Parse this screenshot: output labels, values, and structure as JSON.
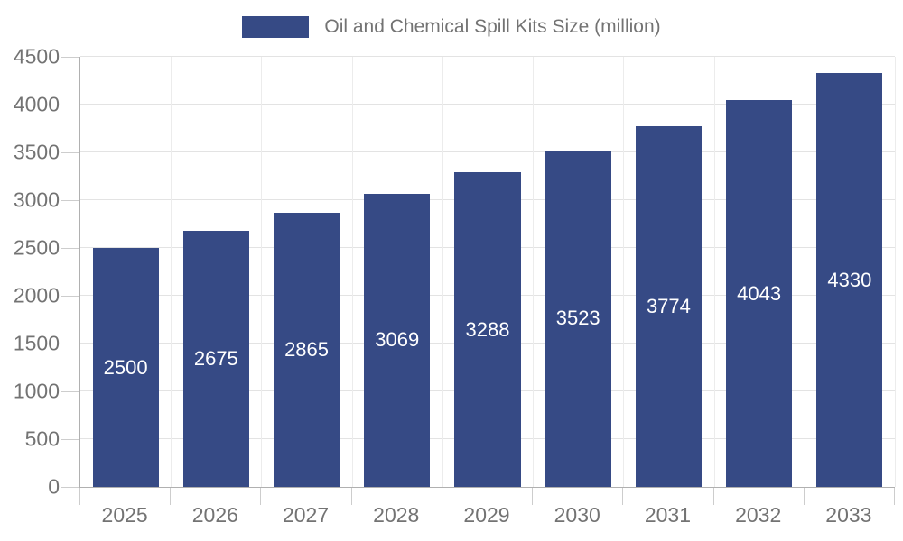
{
  "chart_data": {
    "type": "bar",
    "title": "",
    "legend_label": "Oil and Chemical Spill Kits Size (million)",
    "legend_position": "top",
    "categories": [
      "2025",
      "2026",
      "2027",
      "2028",
      "2029",
      "2030",
      "2031",
      "2032",
      "2033"
    ],
    "values": [
      2500,
      2675,
      2865,
      3069,
      3288,
      3523,
      3774,
      4043,
      4330
    ],
    "xlabel": "",
    "ylabel": "",
    "ylim": [
      0,
      4500
    ],
    "yticks": [
      0,
      500,
      1000,
      1500,
      2000,
      2500,
      3000,
      3500,
      4000,
      4500
    ],
    "grid": true,
    "colors": {
      "bar": "#364a85",
      "axis_text": "#737373",
      "gridline": "#e3e3e3",
      "vertical_gridline": "#ececec",
      "axis_line": "#b0b0b0",
      "tick": "#cdcdcd",
      "value_label": "#ffffff"
    }
  }
}
